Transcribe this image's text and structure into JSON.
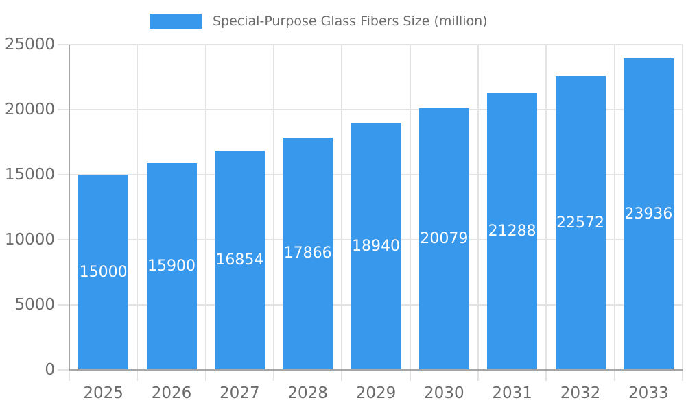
{
  "chart_data": {
    "type": "bar",
    "title": "",
    "legend": {
      "label": "Special-Purpose Glass Fibers Size (million)",
      "position": "top"
    },
    "categories": [
      "2025",
      "2026",
      "2027",
      "2028",
      "2029",
      "2030",
      "2031",
      "2032",
      "2033"
    ],
    "series": [
      {
        "name": "Special-Purpose Glass Fibers Size (million)",
        "values": [
          15000,
          15900,
          16854,
          17866,
          18940,
          20079,
          21288,
          22572,
          23936
        ]
      }
    ],
    "value_labels_shown": true,
    "xlabel": "",
    "ylabel": "",
    "ylim": [
      0,
      25000
    ],
    "yticks": [
      0,
      5000,
      10000,
      15000,
      20000,
      25000
    ],
    "ytick_labels": [
      "0",
      "5000",
      "10000",
      "15000",
      "20000",
      "25000"
    ],
    "grid": true,
    "colors": {
      "bar": "#3898EC",
      "grid": "#E3E3E3",
      "axis": "#A6A6A6",
      "tick_label": "#6B6B6B",
      "legend_text": "#6B6B6B",
      "value_label": "#FFFFFF",
      "background": "#FFFFFF"
    }
  }
}
